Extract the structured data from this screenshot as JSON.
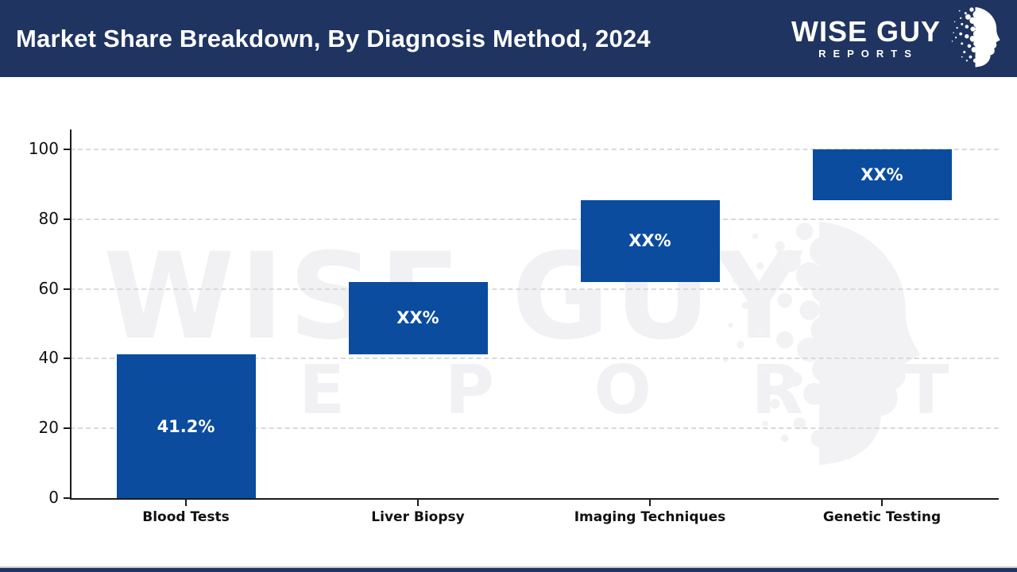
{
  "header": {
    "title": "Market Share Breakdown, By Diagnosis Method, 2024",
    "logo": {
      "line1": "WISE GUY",
      "line2": "REPORTS"
    }
  },
  "watermark": {
    "line1": "WISE GUY",
    "line2": "R E P O R T S"
  },
  "chart_data": {
    "type": "bar",
    "subtype": "waterfall",
    "title": "Market Share Breakdown, By Diagnosis Method, 2024",
    "categories": [
      "Blood Tests",
      "Liver Biopsy",
      "Imaging Techniques",
      "Genetic Testing"
    ],
    "segments": [
      {
        "category": "Blood Tests",
        "start": 0,
        "end": 41.2,
        "label": "41.2%"
      },
      {
        "category": "Liver Biopsy",
        "start": 41.2,
        "end": 62,
        "label": "XX%"
      },
      {
        "category": "Imaging Techniques",
        "start": 62,
        "end": 85.5,
        "label": "XX%"
      },
      {
        "category": "Genetic Testing",
        "start": 85.5,
        "end": 100,
        "label": "XX%"
      }
    ],
    "yticks": [
      0,
      20,
      40,
      60,
      80,
      100
    ],
    "ylim": [
      0,
      105.7
    ],
    "xlabel": "",
    "ylabel": "",
    "legend": "none",
    "grid": "horizontal-dashed",
    "bar_color": "#0B4C9F",
    "bar_label_color": "#ffffff",
    "axis_color": "#1a1a1a",
    "gridline_color": "#d9d9d9",
    "header_bg_color": "#1F3460",
    "watermark_color": "#f1f1f4"
  }
}
